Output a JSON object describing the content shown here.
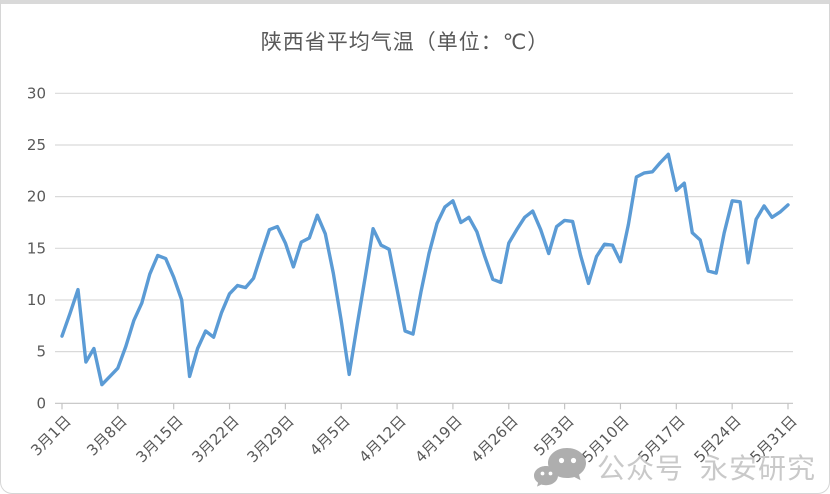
{
  "title": "陕西省平均气温（单位：℃）",
  "watermark": {
    "icon": "wechat-icon",
    "part1": "公众号",
    "part2": "永安研究"
  },
  "colors": {
    "line": "#5B9BD5",
    "grid": "#D9D9D9",
    "axis": "#C3C3C3",
    "text": "#595959",
    "border": "#D6D6D6",
    "watermark_text": "#C9C9C9",
    "watermark_icon": "#AEAEAE"
  },
  "chart_data": {
    "type": "line",
    "title": "陕西省平均气温（单位：℃）",
    "xlabel": "",
    "ylabel": "",
    "ylim": [
      0,
      30
    ],
    "y_ticks": [
      0,
      5,
      10,
      15,
      20,
      25,
      30
    ],
    "grid": true,
    "legend": "none",
    "x_tick_labels": [
      "3月1日",
      "3月8日",
      "3月15日",
      "3月22日",
      "3月29日",
      "4月5日",
      "4月12日",
      "4月19日",
      "4月26日",
      "5月3日",
      "5月10日",
      "5月17日",
      "5月24日",
      "5月31日"
    ],
    "x_tick_interval_days": 7,
    "series": [
      {
        "name": "平均气温",
        "values": [
          6.5,
          8.7,
          11.0,
          4.0,
          5.3,
          1.8,
          2.6,
          3.4,
          5.5,
          8.0,
          9.7,
          12.5,
          14.3,
          14.0,
          12.2,
          10.0,
          2.6,
          5.3,
          7.0,
          6.4,
          8.8,
          10.6,
          11.4,
          11.2,
          12.1,
          14.5,
          16.8,
          17.1,
          15.5,
          13.2,
          15.6,
          16.0,
          18.2,
          16.4,
          12.6,
          8.0,
          2.8,
          7.6,
          12.2,
          16.9,
          15.3,
          14.9,
          11.0,
          7.0,
          6.7,
          10.8,
          14.5,
          17.4,
          19.0,
          19.6,
          17.5,
          18.0,
          16.6,
          14.2,
          12.0,
          11.7,
          15.5,
          16.8,
          18.0,
          18.6,
          16.8,
          14.5,
          17.1,
          17.7,
          17.6,
          14.3,
          11.6,
          14.2,
          15.4,
          15.3,
          13.7,
          17.3,
          21.9,
          22.3,
          22.4,
          23.3,
          24.1,
          20.6,
          21.3,
          16.5,
          15.8,
          12.8,
          12.6,
          16.5,
          19.6,
          19.5,
          13.6,
          17.8,
          19.1,
          18.0,
          18.5,
          19.2
        ]
      }
    ]
  }
}
